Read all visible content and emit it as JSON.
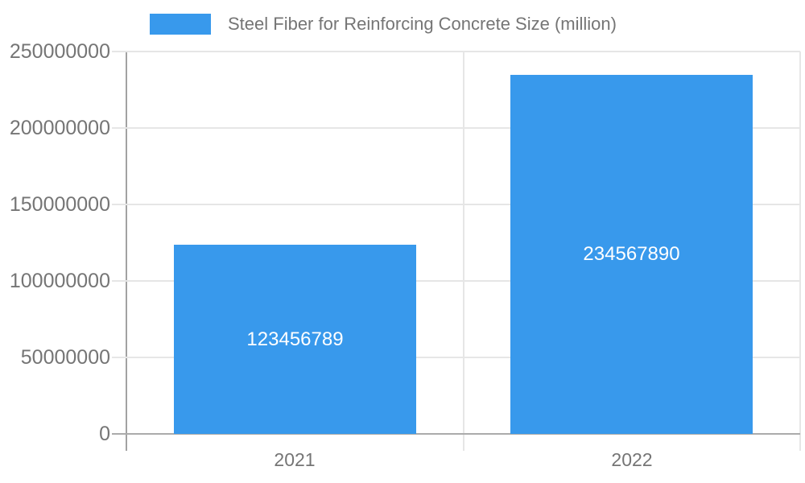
{
  "chart_data": {
    "type": "bar",
    "title": "",
    "legend": {
      "label": "Steel Fiber for Reinforcing Concrete Size (million)",
      "position": "top"
    },
    "categories": [
      "2021",
      "2022"
    ],
    "series": [
      {
        "name": "Steel Fiber for Reinforcing Concrete Size (million)",
        "values": [
          123456789,
          234567890
        ]
      }
    ],
    "bar_value_labels": [
      "123456789",
      "234567890"
    ],
    "ylim": [
      0,
      250000000
    ],
    "yticks": [
      0,
      50000000,
      100000000,
      150000000,
      200000000,
      250000000
    ],
    "ytick_labels": [
      "0",
      "50000000",
      "100000000",
      "150000000",
      "200000000",
      "250000000"
    ],
    "xlabel": "",
    "ylabel": "",
    "grid": true,
    "colors": {
      "bar": "#3899EC",
      "gridline": "#E6E6E6",
      "axis_line": "#A2A2A2",
      "baseline": "#ABABAB",
      "axis_text": "#757575",
      "value_label": "#FFFFFF",
      "background": "#FFFFFF"
    }
  }
}
